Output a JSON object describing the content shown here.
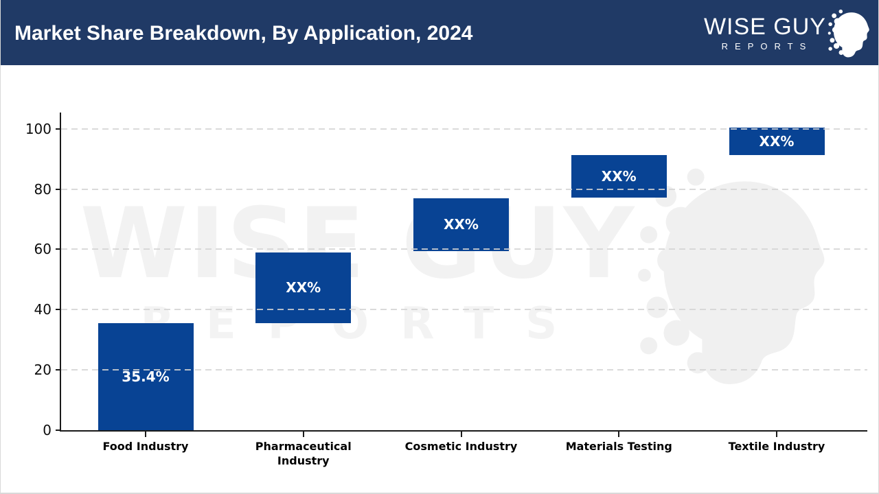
{
  "header": {
    "title": "Market Share Breakdown, By Application, 2024",
    "logo": {
      "brand_line1": "WISE GUY",
      "brand_line2": "REPORTS"
    }
  },
  "watermark": {
    "line1": "WISE GUY",
    "line2": "REPORTS"
  },
  "colors": {
    "header_bg": "#203a66",
    "bar_blue": "#084394",
    "bar_label": "#ffffff",
    "grid_gray": "#d4d4d4",
    "axis_black": "#1a1a1a"
  },
  "chart_data": {
    "type": "bar",
    "subtype": "waterfall",
    "title": "Market Share Breakdown, By Application, 2024",
    "categories": [
      "Food Industry",
      "Pharmaceutical Industry",
      "Cosmetic Industry",
      "Materials Testing",
      "Textile Industry"
    ],
    "segments": [
      {
        "category": "Food Industry",
        "start": 0,
        "end": 35.4,
        "label": "35.4%"
      },
      {
        "category": "Pharmaceutical Industry",
        "start": 35.5,
        "end": 59.0,
        "label": "XX%"
      },
      {
        "category": "Cosmetic Industry",
        "start": 59.4,
        "end": 77.0,
        "label": "XX%"
      },
      {
        "category": "Materials Testing",
        "start": 77.2,
        "end": 91.3,
        "label": "XX%"
      },
      {
        "category": "Textile Industry",
        "start": 91.3,
        "end": 100.3,
        "label": "XX%"
      }
    ],
    "yticks": [
      0,
      20,
      40,
      60,
      80,
      100
    ],
    "ylim": [
      0,
      105.5
    ],
    "xlabel": "",
    "ylabel": "",
    "grid": "horizontal-dashed",
    "legend": "none"
  }
}
